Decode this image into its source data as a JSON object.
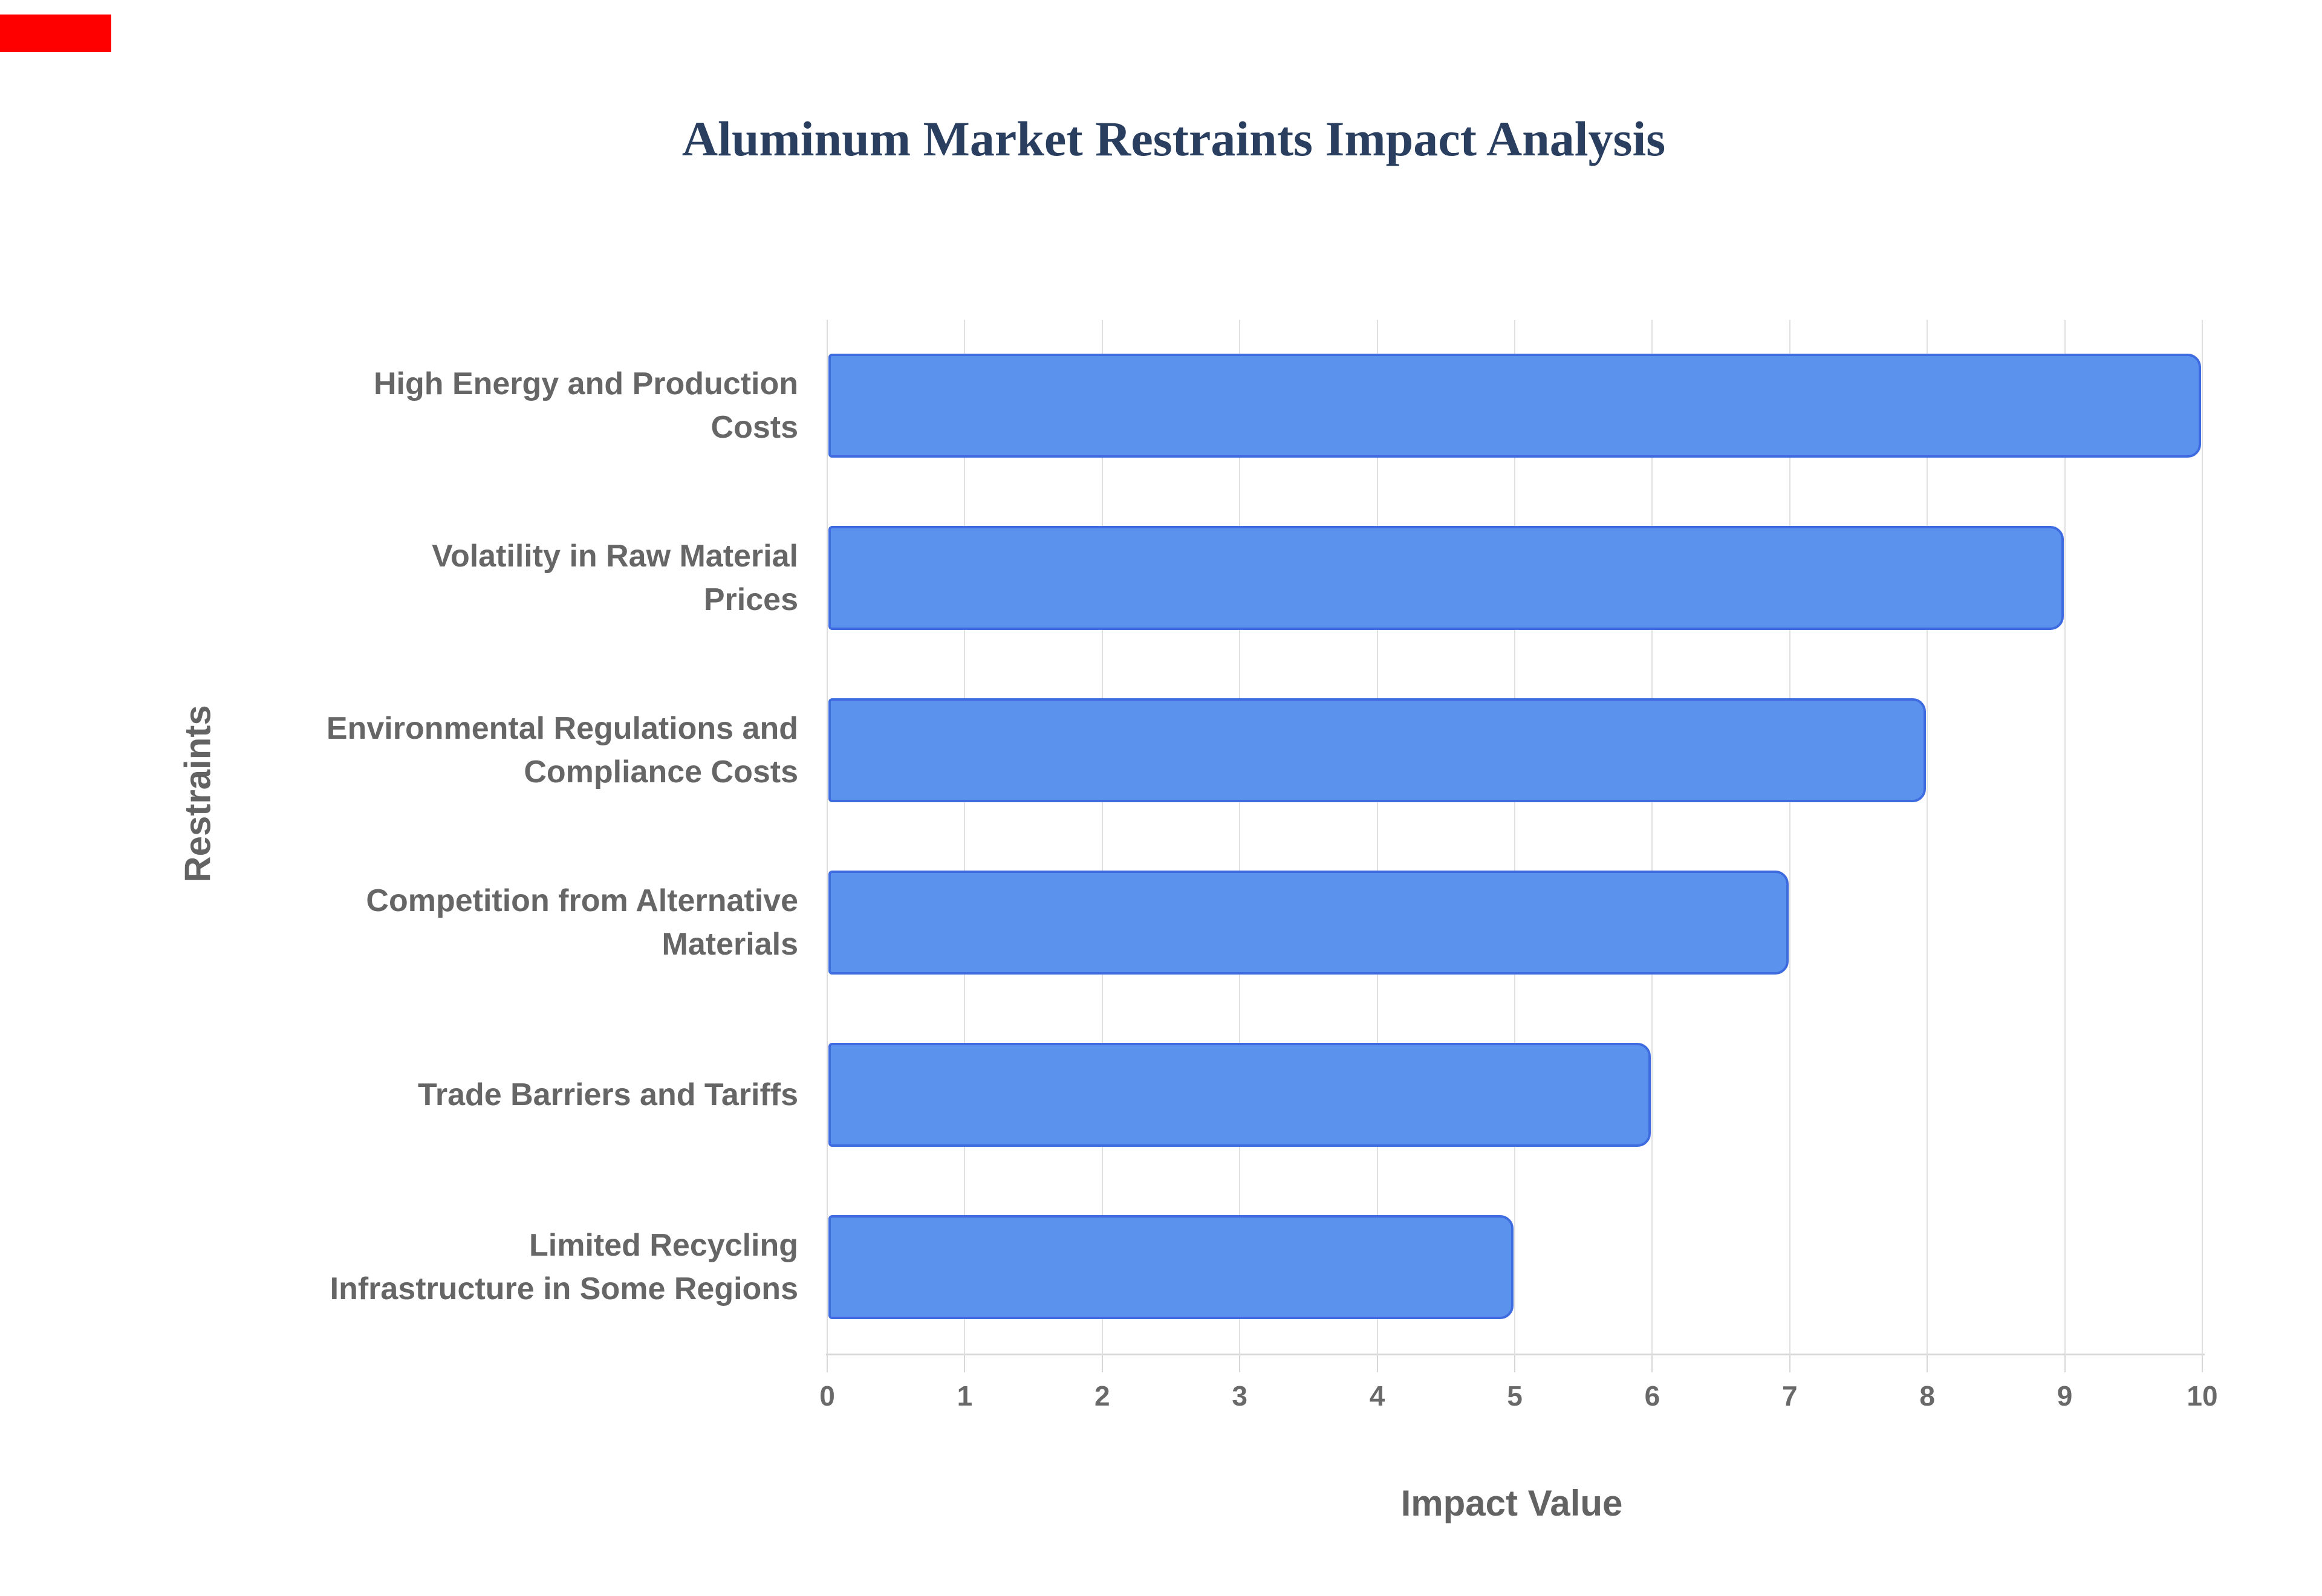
{
  "page": {
    "background_color": "#ffffff"
  },
  "artifact": {
    "red_marker_color": "#ff0000"
  },
  "chart_data": {
    "type": "bar",
    "orientation": "horizontal",
    "title": "Aluminum Market Restraints Impact Analysis",
    "xlabel": "Impact Value",
    "ylabel": "Restraints",
    "categories": [
      "High Energy and Production Costs",
      "Volatility in Raw Material Prices",
      "Environmental Regulations and Compliance Costs",
      "Competition from Alternative Materials",
      "Trade Barriers and Tariffs",
      "Limited Recycling Infrastructure in Some Regions"
    ],
    "label_lines": [
      [
        "High Energy and Production",
        "Costs"
      ],
      [
        "Volatility in Raw Material",
        "Prices"
      ],
      [
        "Environmental Regulations and",
        "Compliance Costs"
      ],
      [
        "Competition from Alternative",
        "Materials"
      ],
      [
        "Trade Barriers and Tariffs"
      ],
      [
        "Limited Recycling",
        "Infrastructure in Some Regions"
      ]
    ],
    "values": [
      10,
      9,
      8,
      7,
      6,
      5
    ],
    "xlim": [
      0,
      10
    ],
    "xticks": [
      0,
      1,
      2,
      3,
      4,
      5,
      6,
      7,
      8,
      9,
      10
    ],
    "grid": "vertical",
    "legend": "none",
    "colors": {
      "bar_fill": "#5b92ee",
      "bar_border": "#3e6ce0",
      "title_text": "#2a3f5f",
      "category_text": "#666666",
      "tick_text": "#696969",
      "axis_title_text": "#636363",
      "gridline": "#e0e0e0",
      "zero_line": "#dcdcdc",
      "axis_line": "#d8d8d8"
    }
  }
}
